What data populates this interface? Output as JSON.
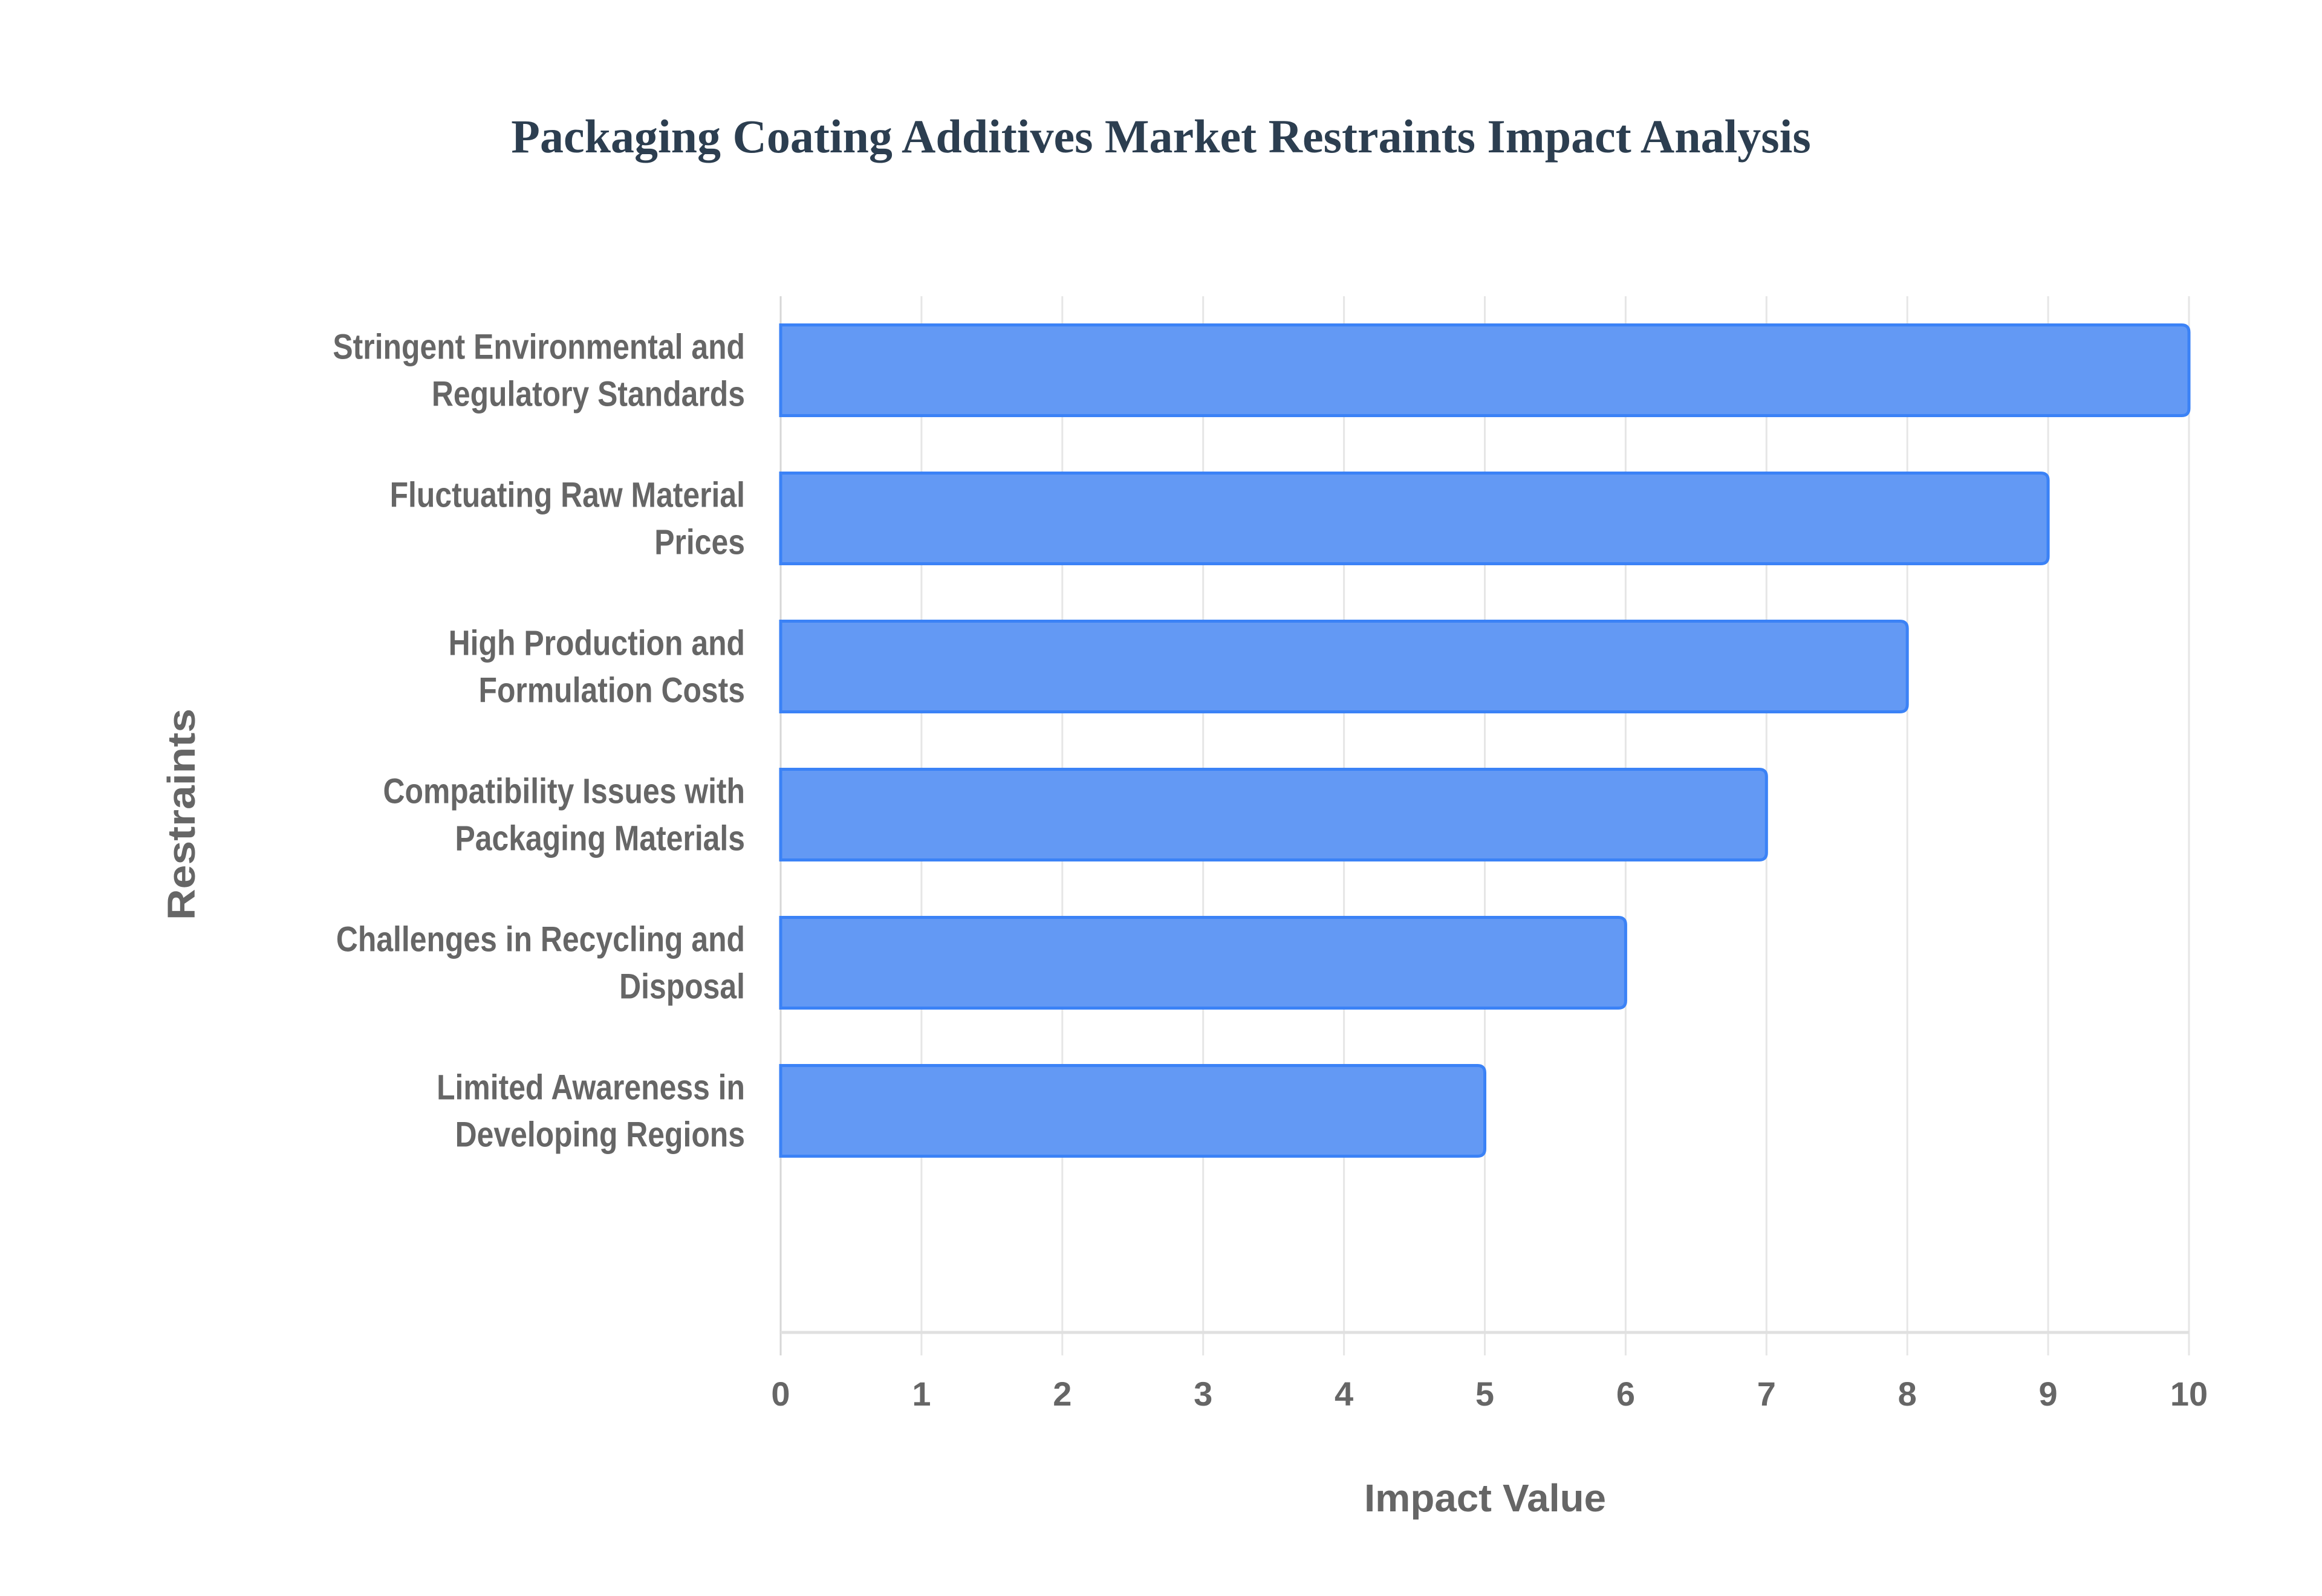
{
  "chart_data": {
    "type": "bar",
    "orientation": "horizontal",
    "title": "Packaging Coating Additives Market Restraints Impact Analysis",
    "xlabel": "Impact Value",
    "ylabel": "Restraints",
    "xlim": [
      0,
      10
    ],
    "xticks": [
      "0",
      "1",
      "2",
      "3",
      "4",
      "5",
      "6",
      "7",
      "8",
      "9",
      "10"
    ],
    "grid": true,
    "categories": [
      [
        "Stringent Environmental and",
        "Regulatory Standards"
      ],
      [
        "Fluctuating Raw Material",
        "Prices"
      ],
      [
        "High Production and",
        "Formulation Costs"
      ],
      [
        "Compatibility Issues with",
        "Packaging Materials"
      ],
      [
        "Challenges in Recycling and",
        "Disposal"
      ],
      [
        "Limited Awareness in",
        "Developing Regions"
      ]
    ],
    "values": [
      10,
      9,
      8,
      7,
      6,
      5
    ],
    "colors": {
      "bar_fill": "#6399f4",
      "bar_border": "#3b82f6",
      "grid": "#e6e6e6",
      "text": "#666666",
      "title": "#2c3e50"
    }
  }
}
